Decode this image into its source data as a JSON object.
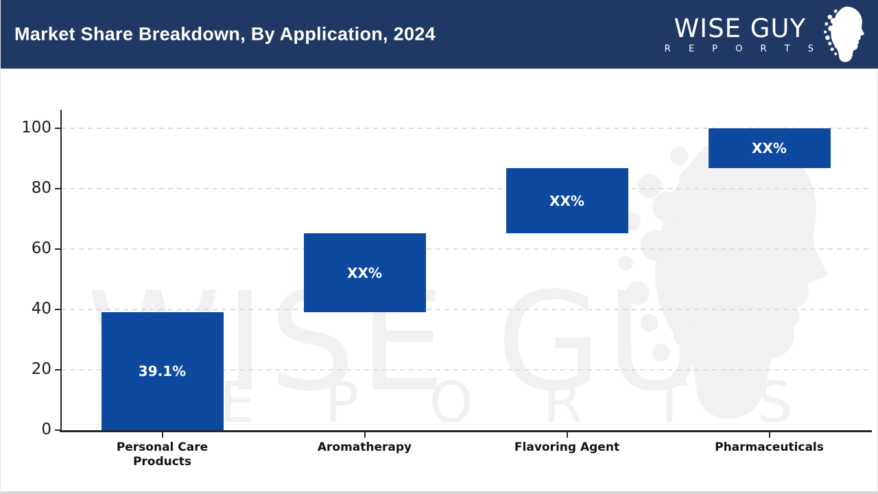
{
  "header": {
    "title": "Market Share Breakdown, By Application, 2024",
    "logo": {
      "line1": "WISE GUY",
      "line2": "R E P O R T S"
    }
  },
  "watermark": {
    "line1": "WISE GUY",
    "line2": "R E P O R T S"
  },
  "chart_data": {
    "type": "bar",
    "subtype": "floating-waterfall",
    "title": "Market Share Breakdown, By Application, 2024",
    "categories": [
      "Personal Care Products",
      "Aromatherapy",
      "Flavoring Agent",
      "Pharmaceuticals"
    ],
    "segments": [
      {
        "category": "Personal Care Products",
        "start": 0,
        "end": 39.1,
        "label": "39.1%"
      },
      {
        "category": "Aromatherapy",
        "start": 39.1,
        "end": 65.2,
        "label": "XX%"
      },
      {
        "category": "Flavoring Agent",
        "start": 65.2,
        "end": 86.8,
        "label": "XX%"
      },
      {
        "category": "Pharmaceuticals",
        "start": 86.8,
        "end": 100,
        "label": "XX%"
      }
    ],
    "ylim": [
      0,
      100
    ],
    "yticks": [
      0,
      20,
      40,
      60,
      80,
      100
    ],
    "xlabel": "",
    "ylabel": "",
    "grid": "dashed-horizontal",
    "legend": "none",
    "bar_color": "#0d4a9f",
    "bar_label_color": "#ffffff",
    "header_color": "#1f3864"
  }
}
